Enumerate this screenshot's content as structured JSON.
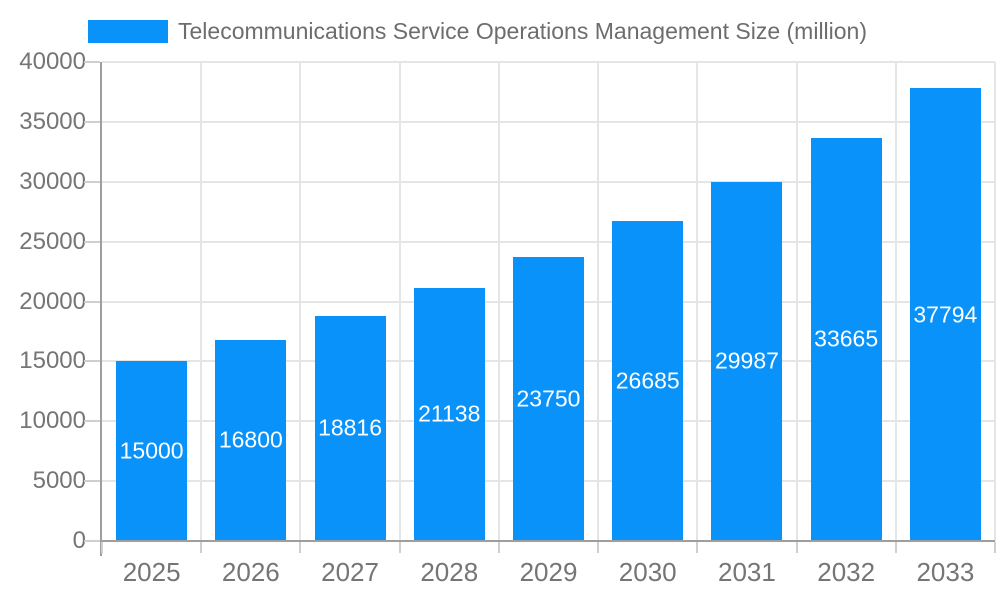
{
  "legend": {
    "label": "Telecommunications Service Operations Management Size (million)"
  },
  "colors": {
    "bar": "#0892FA",
    "grid": "#e5e5e5",
    "tick": "#cfcfcf",
    "axis_line": "#9e9e9e",
    "axis_text": "#757575",
    "title_text": "#6d6d6d",
    "bar_label_text": "#ffffff",
    "background": "#ffffff"
  },
  "chart_data": {
    "type": "bar",
    "title": "Telecommunications Service Operations Management Size (million)",
    "categories": [
      "2025",
      "2026",
      "2027",
      "2028",
      "2029",
      "2030",
      "2031",
      "2032",
      "2033"
    ],
    "values": [
      15000,
      16800,
      18816,
      21138,
      23750,
      26685,
      29987,
      33665,
      37794
    ],
    "series_name": "Telecommunications Service Operations Management Size (million)",
    "xlabel": "",
    "ylabel": "",
    "ylim": [
      0,
      40000
    ],
    "yticks": [
      0,
      5000,
      10000,
      15000,
      20000,
      25000,
      30000,
      35000,
      40000
    ],
    "grid": true,
    "legend_position": "top-left",
    "bar_labels": "inside-center"
  }
}
